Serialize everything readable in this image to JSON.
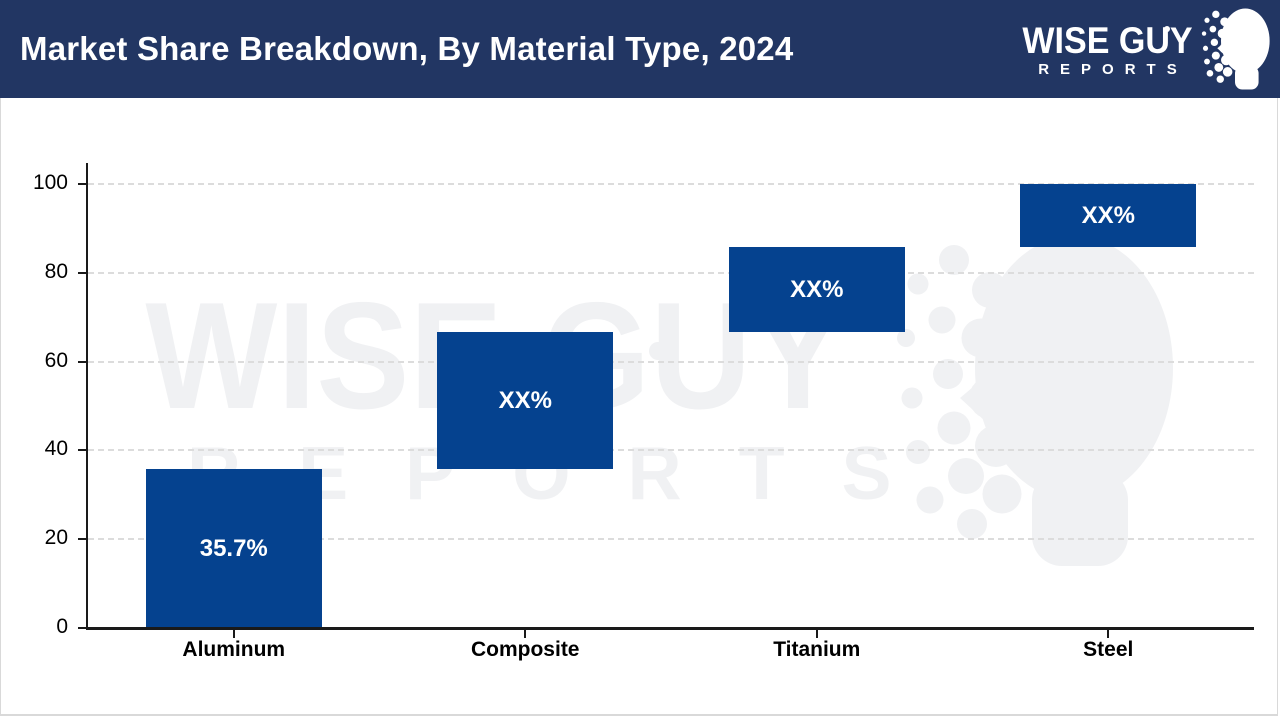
{
  "header": {
    "bg": "#223663",
    "title": "Market Share Breakdown, By Material Type, 2024",
    "logo": {
      "line1": "WISE GUY",
      "line2": "REPORTS"
    }
  },
  "watermark": {
    "line1": "WISE GUY",
    "line2": "REPORTS"
  },
  "chart_data": {
    "type": "bar",
    "subtype": "waterfall",
    "title": "Market Share Breakdown, By Material Type, 2024",
    "categories": [
      "Aluminum",
      "Composite",
      "Titanium",
      "Steel"
    ],
    "segments": [
      {
        "category": "Aluminum",
        "start": 0,
        "end": 35.7,
        "label": "35.7%"
      },
      {
        "category": "Composite",
        "start": 35.7,
        "end": 66.7,
        "label": "XX%"
      },
      {
        "category": "Titanium",
        "start": 66.7,
        "end": 85.7,
        "label": "XX%"
      },
      {
        "category": "Steel",
        "start": 85.7,
        "end": 100,
        "label": "XX%"
      }
    ],
    "xlabel": "",
    "ylabel": "",
    "ylim": [
      0,
      100
    ],
    "yticks": [
      0,
      20,
      40,
      60,
      80,
      100
    ],
    "grid": "horizontal-dashed",
    "legend": null,
    "bar_color": "#05428f",
    "bar_label_color": "#ffffff",
    "axis_color": "#1a1a1a",
    "grid_color": "#dcdcdc",
    "watermark_color": "#f0f1f3"
  }
}
